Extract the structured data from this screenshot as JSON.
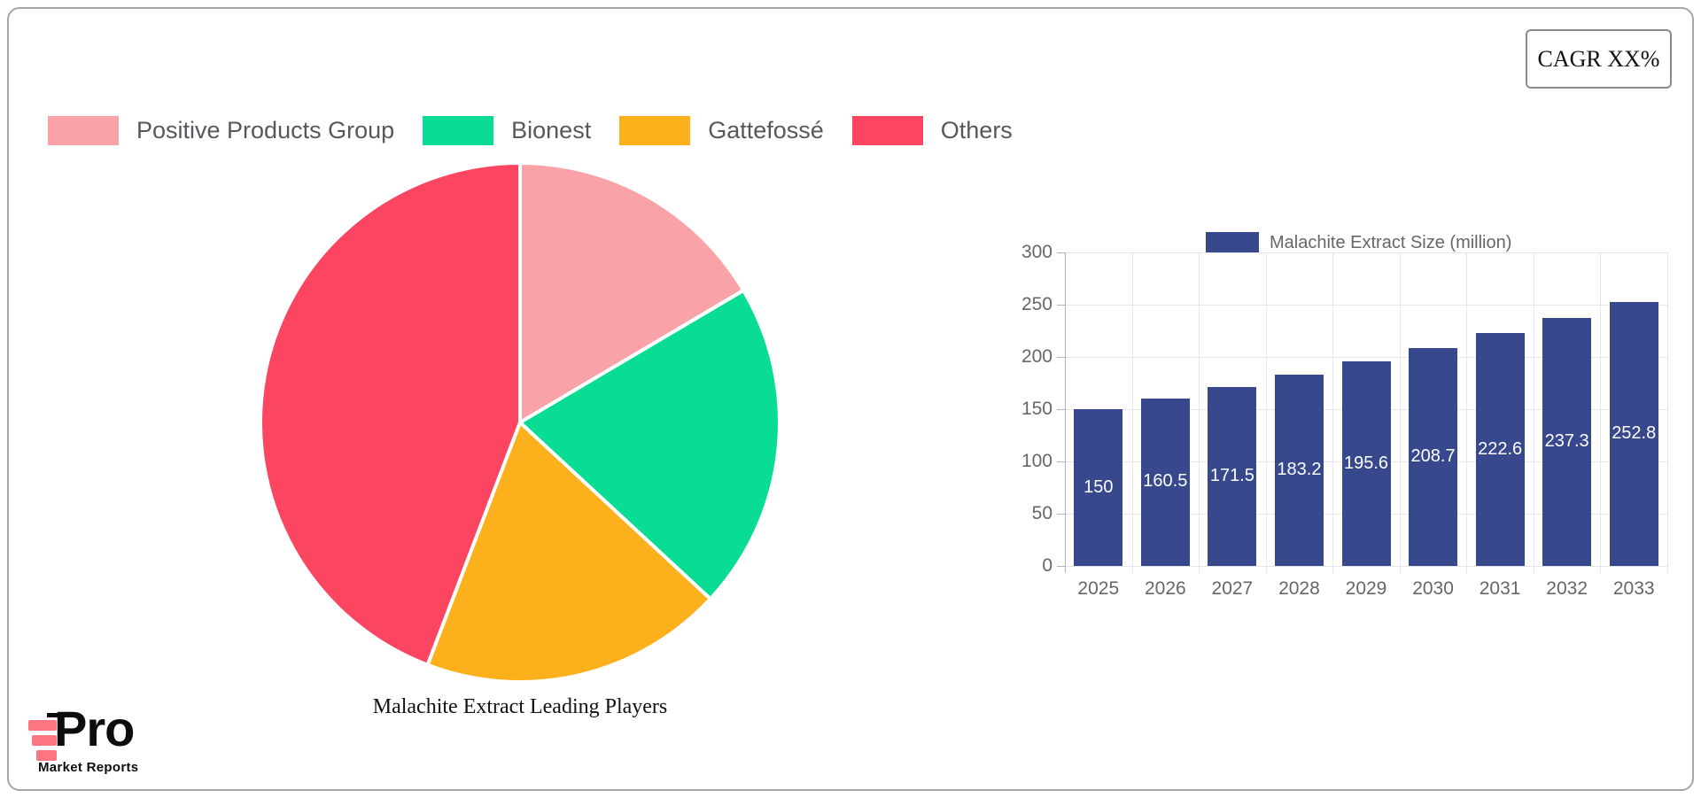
{
  "page": {
    "background": "#ffffff",
    "frame_border_color": "#a6a6a6"
  },
  "cagr_box": {
    "label": "CAGR XX%"
  },
  "pie": {
    "title": "Malachite Extract Leading Players"
  },
  "bar": {
    "legend_label": "Malachite Extract Size (million)"
  },
  "logo": {
    "brand": "Pro",
    "subtitle": "Market Reports",
    "accent_color": "#FB7583"
  },
  "chart_data": [
    {
      "type": "pie",
      "title": "Malachite Extract Leading Players",
      "labels": [
        "Positive Products Group",
        "Bionest",
        "Gattefossé",
        "Others"
      ],
      "values": [
        16.5,
        20.4,
        18.9,
        44.2
      ],
      "unit": "estimated % of circle",
      "colors": [
        "#F9A2A7",
        "#09DC93",
        "#FCB01B",
        "#FC4560"
      ],
      "start_angle_deg": 0,
      "direction": "clockwise",
      "slice_border_color": "#ffffff",
      "legend_position": "top-left"
    },
    {
      "type": "bar",
      "legend": "Malachite Extract Size (million)",
      "categories": [
        "2025",
        "2026",
        "2027",
        "2028",
        "2029",
        "2030",
        "2031",
        "2032",
        "2033"
      ],
      "values": [
        150,
        160.5,
        171.5,
        183.2,
        195.6,
        208.7,
        222.6,
        237.3,
        252.8
      ],
      "bar_color": "#37488C",
      "value_label_color": "#ffffff",
      "ylim": [
        0,
        300
      ],
      "yticks": [
        0,
        50,
        100,
        150,
        200,
        250,
        300
      ],
      "grid": true,
      "legend_position": "top"
    }
  ]
}
